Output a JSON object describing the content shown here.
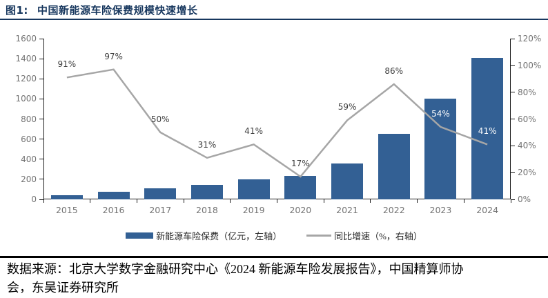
{
  "figure": {
    "label": "图1:",
    "title": "中国新能源车险保费规模快速增长"
  },
  "chart_data": {
    "type": "bar",
    "title": "中国新能源车险保费规模快速增长",
    "categories": [
      "2015",
      "2016",
      "2017",
      "2018",
      "2019",
      "2020",
      "2021",
      "2022",
      "2023",
      "2024"
    ],
    "series": [
      {
        "name": "新能源车险保费（亿元，左轴）",
        "type": "bar",
        "axis": "left",
        "values": [
          40,
          75,
          110,
          145,
          200,
          232,
          360,
          650,
          1005,
          1410
        ]
      },
      {
        "name": "同比增速（%，右轴）",
        "type": "line",
        "axis": "right",
        "values": [
          91,
          97,
          50,
          31,
          41,
          17,
          59,
          86,
          54,
          41
        ],
        "point_labels": [
          "91%",
          "97%",
          "50%",
          "31%",
          "41%",
          "17%",
          "59%",
          "86%",
          "54%",
          "41%"
        ],
        "white_label_indexes": [
          8,
          9
        ]
      }
    ],
    "left_axis": {
      "min": 0,
      "max": 1600,
      "step": 200,
      "tick_labels": [
        "0",
        "200",
        "400",
        "600",
        "800",
        "1000",
        "1200",
        "1400",
        "1600"
      ]
    },
    "right_axis": {
      "min": 0,
      "max": 120,
      "step": 20,
      "tick_labels": [
        "0%",
        "20%",
        "40%",
        "60%",
        "80%",
        "100%",
        "120%"
      ]
    },
    "grid": false,
    "legend_position": "bottom"
  },
  "legend": {
    "bar_label": "新能源车险保费（亿元，左轴）",
    "line_label": "同比增速（%，右轴）"
  },
  "source": {
    "line1": "数据来源：北京大学数字金融研究中心《2024 新能源车险发展报告》，中国精算师协",
    "line2": "会，东吴证券研究所"
  },
  "colors": {
    "title_navy": "#17375E",
    "bar_blue": "#336094",
    "line_gray": "#A6A6A6",
    "data_label": "#3D3D3D",
    "white_label": "#FFFFFF",
    "axis_text": "#737373",
    "axis_line": "#1A1A1A",
    "divider_black": "#000000"
  }
}
